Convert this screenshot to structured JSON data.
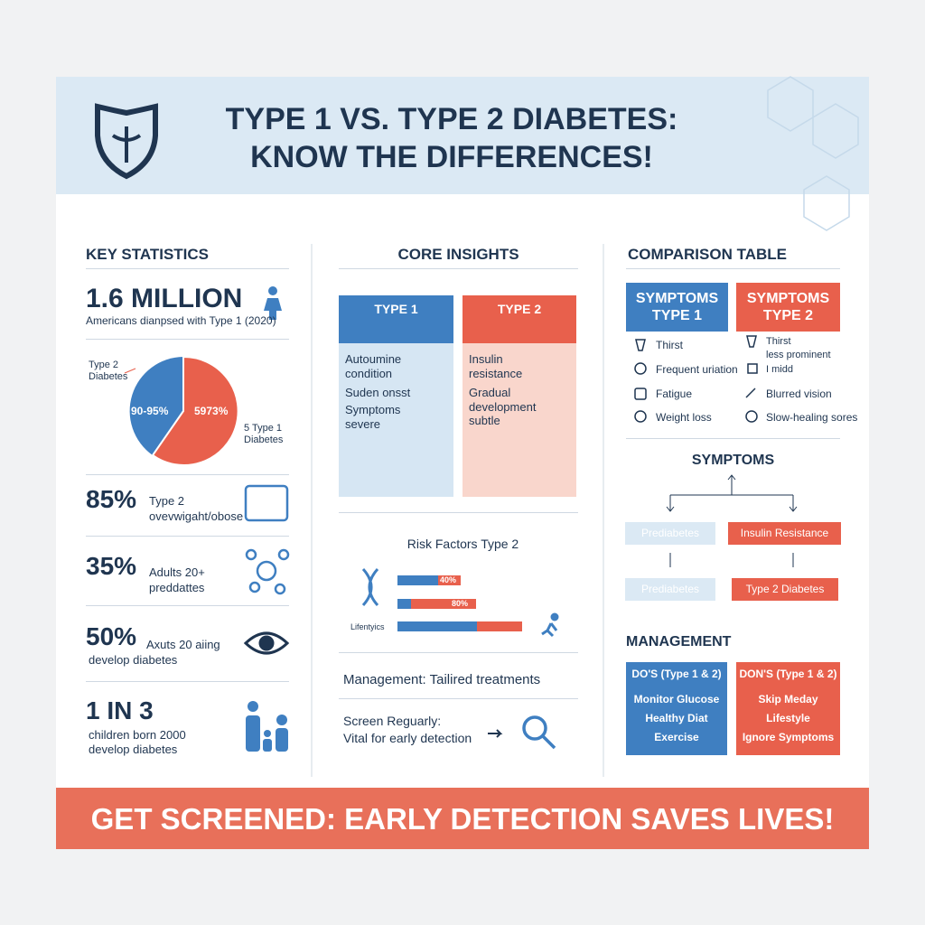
{
  "header": {
    "title_line1": "TYPE 1 VS. TYPE 2 DIABETES:",
    "title_line2": "KNOW THE DIFFERENCES!"
  },
  "key_statistics": {
    "heading": "KEY STATISTICS",
    "million": {
      "value": "1.6 MILLION",
      "caption": "Americans dianpsed with Type 1 (2020)"
    },
    "pie": {
      "type2_label": "Type 2\nDiabetes",
      "type2_pct": "90-95%",
      "type1_pct": "5973%",
      "type1_label": "5 Type 1\nDiabetes"
    },
    "stats": [
      {
        "value": "85%",
        "line1": "Type 2",
        "line2": "ovevwigaht/obose"
      },
      {
        "value": "35%",
        "line1": "Adults 20+",
        "line2": "preddattes"
      },
      {
        "value": "50%",
        "line1": "Axuts 20 aiing",
        "line2": "develop diabetes"
      },
      {
        "value": "1 IN 3",
        "line1": "children born 2000",
        "line2": "develop diabetes"
      }
    ]
  },
  "core_insights": {
    "heading": "CORE INSIGHTS",
    "type1": {
      "title": "TYPE 1",
      "items": [
        "Autoumine condition",
        "Suden onsst",
        "Symptoms severe"
      ]
    },
    "type2": {
      "title": "TYPE 2",
      "items": [
        "Insulin resistance",
        "Gradual development subtle"
      ]
    },
    "risk": {
      "title": "Risk Factors Type 2",
      "labels": [
        "40%",
        "80%"
      ],
      "row_label": "Lifentyics"
    },
    "management": "Management: Tailired treatments",
    "screen": {
      "line1": "Screen Reguarly:",
      "line2": "Vital for early detection"
    }
  },
  "comparison": {
    "heading": "COMPARISON TABLE",
    "type1": {
      "title": "SYMPTOMS\nTYPE 1",
      "items": [
        "Thirst",
        "Frequent uriation",
        "Fatigue",
        "Weight loss"
      ]
    },
    "type2": {
      "title": "SYMPTOMS\nTYPE 2",
      "items": [
        "Thirst\nless prominent\nI midd",
        "Blurred vision",
        "Slow-healing sores"
      ]
    },
    "flow": {
      "title": "SYMPTOMS",
      "nodes": [
        "Prediabetes",
        "Insulin Resistance",
        "Prediabetes",
        "Type 2 Diabetes"
      ]
    },
    "management": {
      "heading": "MANAGEMENT",
      "dos": {
        "title": "DO'S (Type 1 & 2)",
        "items": [
          "Monitor Glucose",
          "Healthy Diat",
          "Exercise"
        ]
      },
      "donts": {
        "title": "DON'S (Type 1 & 2)",
        "items": [
          "Skip Meday",
          "Lifestyle",
          "Ignore Symptoms"
        ]
      }
    }
  },
  "footer": "GET SCREENED: EARLY DETECTION SAVES LIVES!"
}
